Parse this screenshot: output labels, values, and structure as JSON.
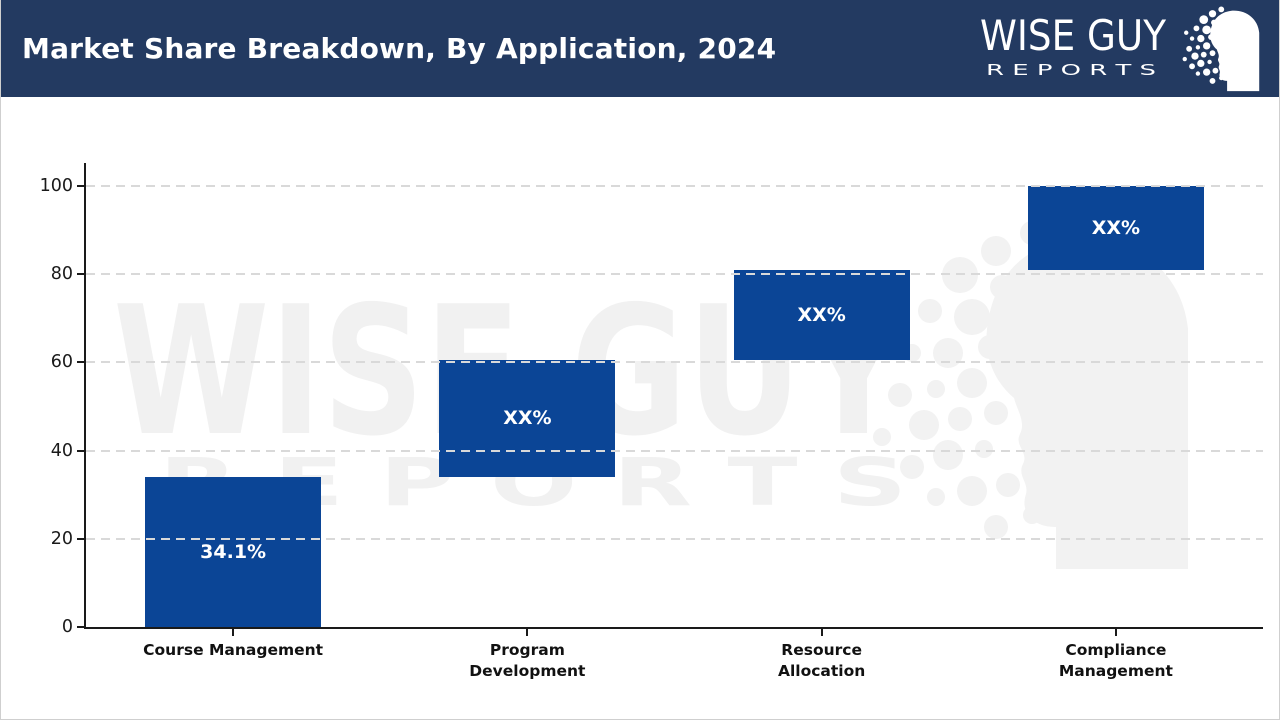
{
  "header": {
    "title": "Market Share Breakdown, By Application, 2024",
    "background": "#233a61",
    "logo": {
      "wordmark": "WISE GUY",
      "subtext": "R E P O R T S"
    }
  },
  "watermark": {
    "wordmark": "WISE GUY",
    "subtext": "R E P O R T S"
  },
  "chart_data": {
    "type": "bar",
    "subtype": "waterfall",
    "title": "Market Share Breakdown, By Application, 2024",
    "categories": [
      "Course Management",
      "Program Development",
      "Resource Allocation",
      "Compliance Management"
    ],
    "segments": [
      {
        "label": "Course Management",
        "label_lines": [
          "Course Management"
        ],
        "start": 0,
        "end": 34.1,
        "value_label": "34.1%"
      },
      {
        "label": "Program Development",
        "label_lines": [
          "Program",
          "Development"
        ],
        "start": 34.1,
        "end": 60.6,
        "value_label": "XX%"
      },
      {
        "label": "Resource Allocation",
        "label_lines": [
          "Resource",
          "Allocation"
        ],
        "start": 60.6,
        "end": 81.0,
        "value_label": "XX%"
      },
      {
        "label": "Compliance Management",
        "label_lines": [
          "Compliance",
          "Management"
        ],
        "start": 81.0,
        "end": 100.0,
        "value_label": "XX%"
      }
    ],
    "yticks": [
      0,
      20,
      40,
      60,
      80,
      100
    ],
    "ylim": [
      0,
      105
    ],
    "grid": true,
    "legend": false,
    "xlabel": "",
    "ylabel": "",
    "bar_color": "#0b4596",
    "value_label_color": "#ffffff",
    "gridline_color": "#d9d9d9",
    "axis_color": "#1a1a1a"
  }
}
